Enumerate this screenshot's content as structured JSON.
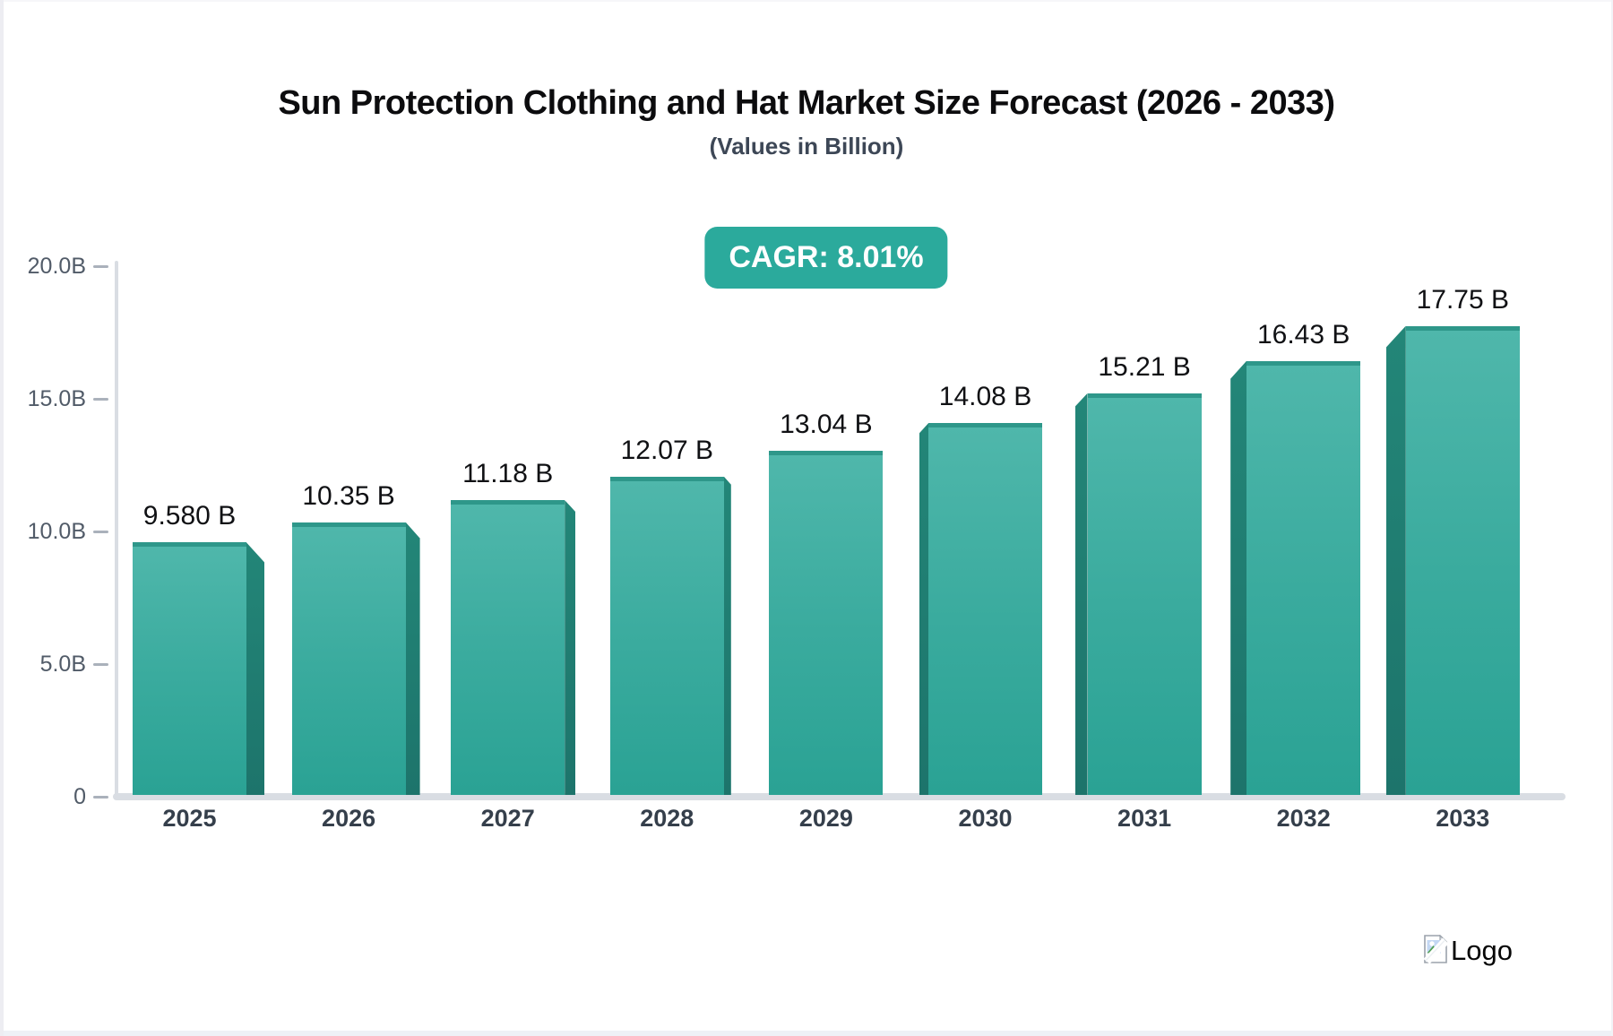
{
  "header": {
    "title": "Sun Protection Clothing and Hat Market Size Forecast (2026 - 2033)",
    "subtitle": "(Values in Billion)",
    "cagr_badge": "CAGR: 8.01%"
  },
  "chart_data": {
    "type": "bar",
    "title": "Sun Protection Clothing and Hat Market Size Forecast (2026 - 2033)",
    "subtitle": "(Values in Billion)",
    "categories": [
      "2025",
      "2026",
      "2027",
      "2028",
      "2029",
      "2030",
      "2031",
      "2032",
      "2033"
    ],
    "values": [
      9.58,
      10.35,
      11.18,
      12.07,
      13.04,
      14.08,
      15.21,
      16.43,
      17.75
    ],
    "value_labels": [
      "9.580 B",
      "10.35 B",
      "11.18 B",
      "12.07 B",
      "13.04 B",
      "14.08 B",
      "15.21 B",
      "16.43 B",
      "17.75 B"
    ],
    "unit": "Billion",
    "cagr_label": "CAGR: 8.01%",
    "xlabel": "",
    "ylabel": "",
    "ylim": [
      0,
      20
    ],
    "ytick_values": [
      20,
      15,
      10,
      5,
      0
    ],
    "ytick_labels": [
      "20.0B",
      "15.0B",
      "10.0B",
      "5.0B",
      "0"
    ],
    "grid": false,
    "legend": false,
    "bar_style": "3d-perspective",
    "colors": {
      "bar_face_top": "#4fb7ab",
      "bar_face_bottom": "#2aa294",
      "bar_top_edge": "#2e978a",
      "bar_side_face": "#1f7d73",
      "badge_background": "#2baa9c",
      "axis_line": "#d9dde3",
      "tick_dash": "#aab1bb",
      "ytick_text": "#515b68",
      "xtick_text": "#353f4b",
      "value_text": "#101114",
      "title_text": "#0c0c0e",
      "subtitle_text": "#3d4756"
    }
  },
  "footer": {
    "logo_alt": "Logo"
  },
  "icons": {
    "broken_image": "broken-image-placeholder"
  }
}
